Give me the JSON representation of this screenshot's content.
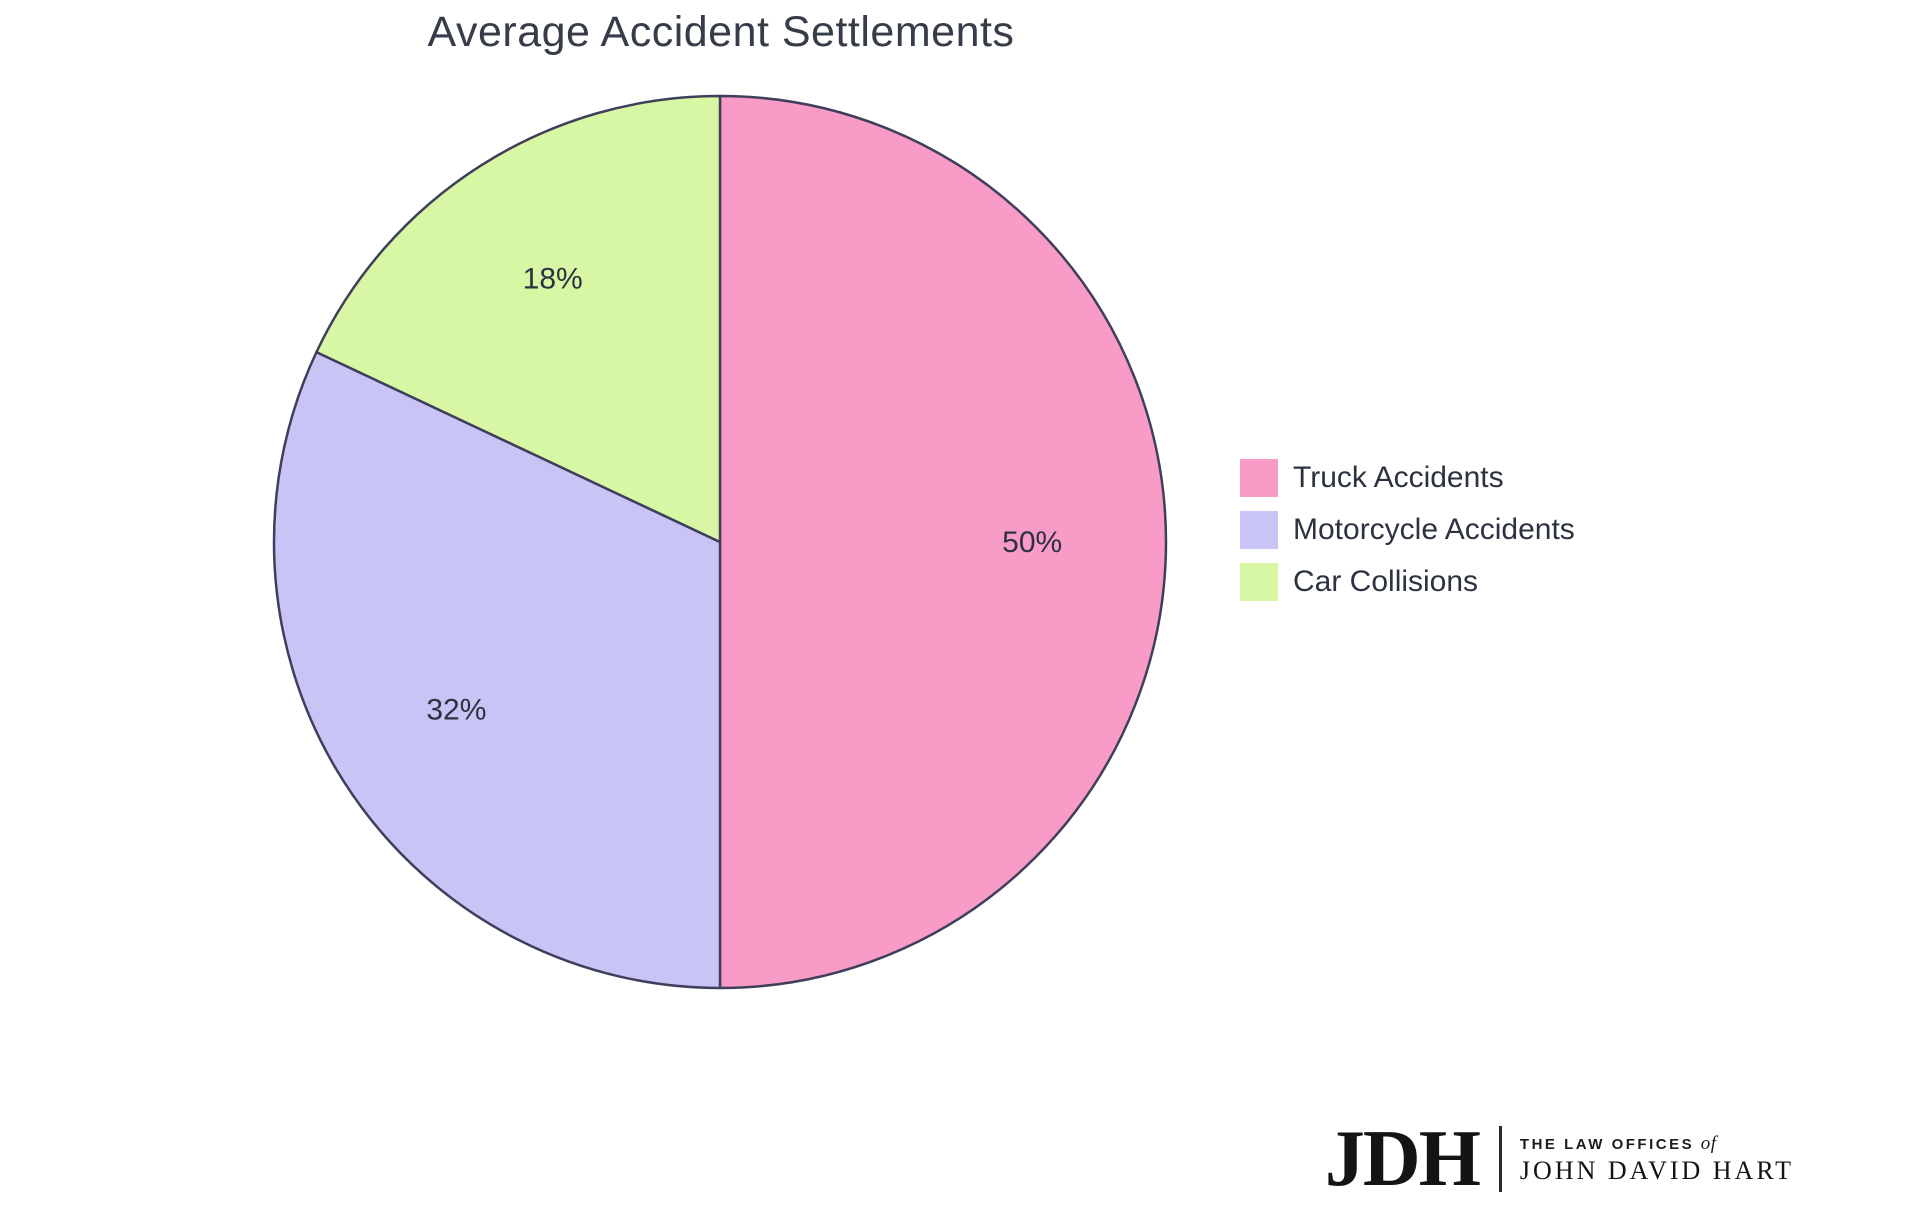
{
  "page": {
    "background_color": "#FFFFFF"
  },
  "chart_data": {
    "type": "pie",
    "title": "Average Accident Settlements",
    "direction": "clockwise",
    "start_angle_deg": 0,
    "slice_border_color": "#3F3F5C",
    "label_color": "#2D3240",
    "legend_position": "right",
    "slices": [
      {
        "label": "Truck Accidents",
        "value": 50,
        "percent_label": "50%",
        "color": "#F99BC7"
      },
      {
        "label": "Motorcycle Accidents",
        "value": 32,
        "percent_label": "32%",
        "color": "#C8C5F6"
      },
      {
        "label": "Car Collisions",
        "value": 18,
        "percent_label": "18%",
        "color": "#D7F7A4"
      }
    ]
  },
  "branding": {
    "monogram": "JDH",
    "firm_prefix": "THE LAW OFFICES",
    "firm_prefix_of": "of",
    "firm_name": "JOHN DAVID HART"
  }
}
